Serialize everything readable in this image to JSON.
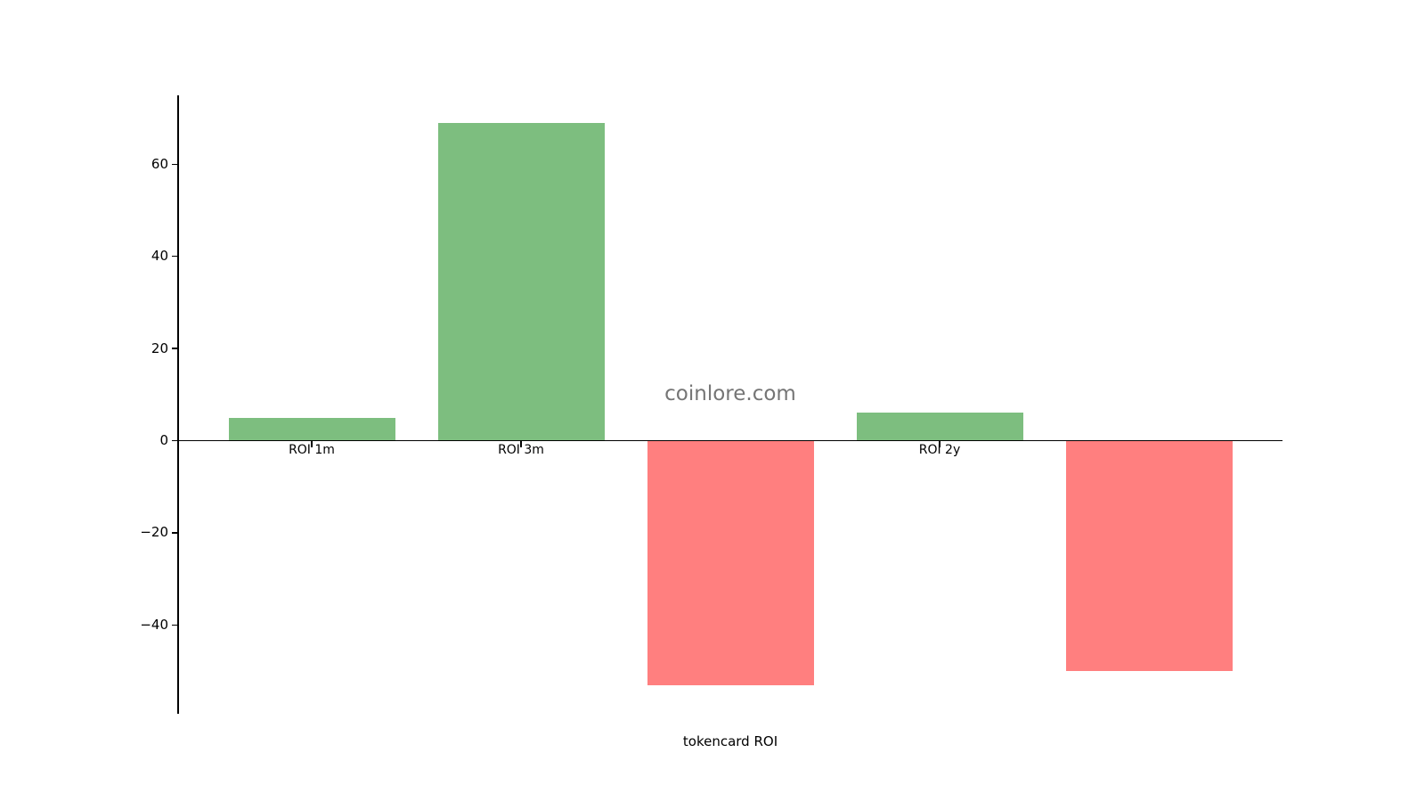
{
  "watermark": {
    "text": "coinlore.com",
    "color": "#757575"
  },
  "title": {
    "text": "tokencard ROI"
  },
  "axis": {
    "color": "#000000"
  },
  "chart_data": {
    "type": "bar",
    "title": "tokencard ROI",
    "watermark": "coinlore.com",
    "categories": [
      "ROI 1m",
      "ROI 3m",
      "",
      "ROI 2y",
      ""
    ],
    "values": [
      5,
      69,
      -53,
      6,
      -50
    ],
    "bar_colors": [
      "#7dbe7f",
      "#7dbe7f",
      "#ff7f7f",
      "#7dbe7f",
      "#ff7f7f"
    ],
    "positive_color": "#7dbe7f",
    "negative_color": "#ff7f7f",
    "xlabel": "",
    "ylabel": "",
    "yticks": [
      60,
      40,
      20,
      0,
      -20,
      -40
    ],
    "ytick_labels": [
      "60",
      "40",
      "20",
      "0",
      "−20",
      "−40"
    ],
    "ylim": [
      -59,
      75
    ],
    "grid": false,
    "legend": null
  }
}
